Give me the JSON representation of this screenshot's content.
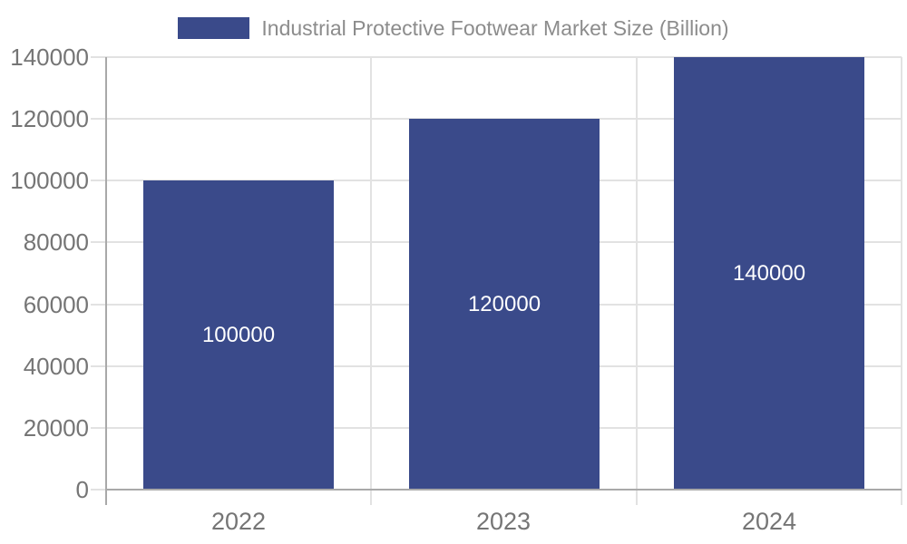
{
  "chart_data": {
    "type": "bar",
    "title": "Industrial Protective Footwear Market Size (Billion)",
    "categories": [
      "2022",
      "2023",
      "2024"
    ],
    "values": [
      100000,
      120000,
      140000
    ],
    "value_labels": [
      "100000",
      "120000",
      "140000"
    ],
    "yticks": [
      0,
      20000,
      40000,
      60000,
      80000,
      100000,
      120000,
      140000
    ],
    "ytick_labels": [
      "0",
      "20000",
      "40000",
      "60000",
      "80000",
      "100000",
      "120000",
      "140000"
    ],
    "ylim": [
      0,
      140000
    ],
    "xlabel": "",
    "ylabel": "",
    "grid": true,
    "legend_position": "top-center",
    "legend_entries": [
      {
        "label": "Industrial Protective Footwear Market Size (Billion)",
        "color": "#3a4a8a"
      }
    ],
    "colors": {
      "bar_fill": "#3a4a8a",
      "grid_line": "#e2e2e2",
      "axis_line": "#a9a9a9",
      "axis_text": "#757575",
      "legend_text": "#8c8c8c",
      "value_label_text": "#ffffff",
      "background": "#ffffff"
    }
  }
}
